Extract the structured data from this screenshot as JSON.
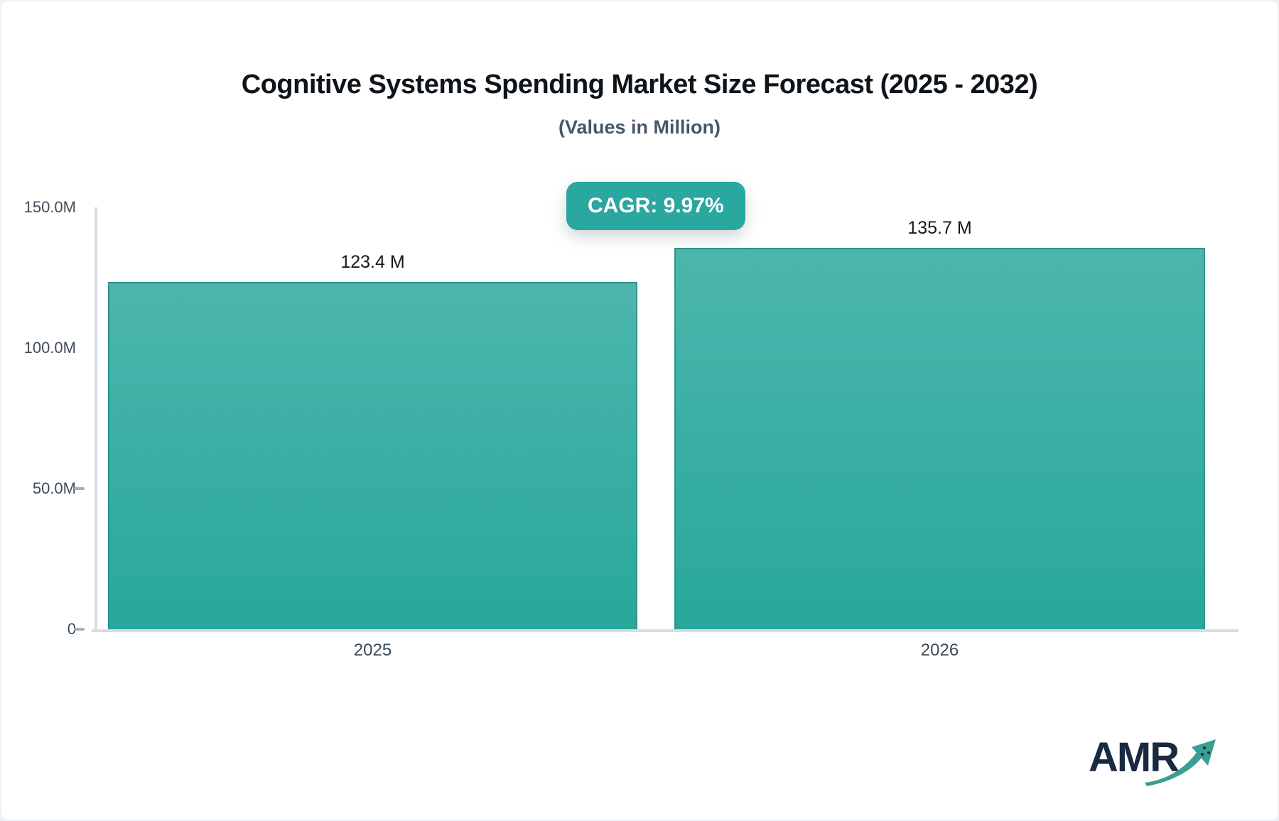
{
  "header": {
    "title": "Cognitive Systems Spending Market Size Forecast (2025 - 2032)",
    "subtitle": "(Values in Million)",
    "cagr_badge": "CAGR: 9.97%"
  },
  "chart_data": {
    "type": "bar",
    "title": "Cognitive Systems Spending Market Size Forecast (2025 - 2032)",
    "subtitle": "(Values in Million)",
    "unit": "Million",
    "cagr_percent": "9.97%",
    "categories": [
      "2025",
      "2026"
    ],
    "values": [
      123.4,
      135.7
    ],
    "value_labels": [
      "123.4 M",
      "135.7 M"
    ],
    "ylim": [
      0,
      150
    ],
    "yticks": [
      "150.0M",
      "100.0M",
      "50.0M",
      "0"
    ],
    "ytick_marks": [
      "50.0M",
      "0"
    ],
    "grid": false,
    "legend": false
  },
  "footer": {
    "logo_text": "AMR"
  },
  "colors": {
    "badge_bg": "#2aa79e",
    "bar_top": "#4db6ac",
    "bar_bottom": "#28a79c",
    "bar_border": "#2e958c",
    "axis_line": "#d9dde1",
    "axis_label": "#3f4c59",
    "title": "#0f1419",
    "subtitle": "#44576b",
    "logo_navy": "#1a2942",
    "logo_teal": "#3a9e92"
  }
}
